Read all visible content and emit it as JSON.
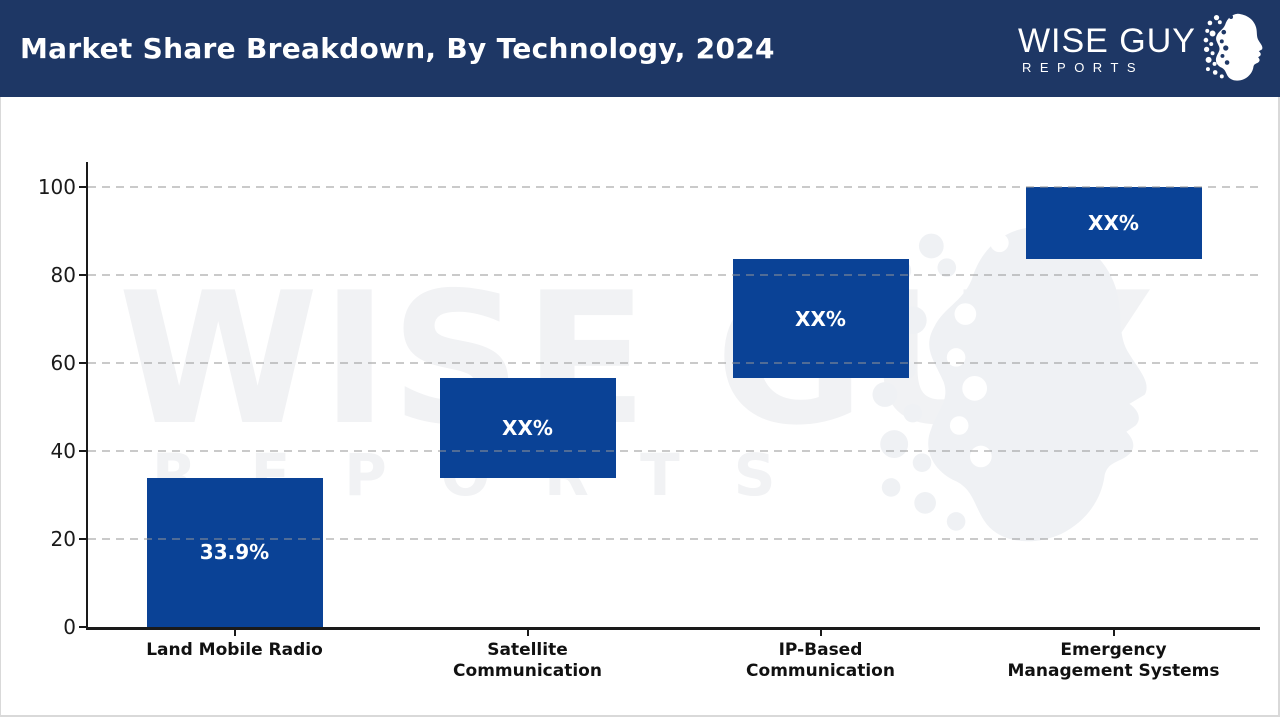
{
  "header": {
    "title": "Market Share Breakdown, By Technology, 2024",
    "brand": {
      "line1": "WISE GUY",
      "line2": "REPORTS"
    }
  },
  "watermark": {
    "line1": "WISE GUY",
    "line2": "REPORTS"
  },
  "colors": {
    "header_bg": "#1e3765",
    "bar": "#0a4296",
    "axis": "#1a1a1a",
    "grid": "rgba(150,150,150,0.5)",
    "watermark": "#f1f2f4",
    "border": "#d9d9d9",
    "label_on_bar": "#ffffff"
  },
  "chart_data": {
    "type": "bar",
    "subtype": "floating-waterfall-segments",
    "title": "Market Share Breakdown, By Technology, 2024",
    "categories": [
      "Land Mobile Radio",
      "Satellite Communication",
      "IP-Based Communication",
      "Emergency Management Systems"
    ],
    "category_lines": [
      [
        "Land Mobile Radio"
      ],
      [
        "Satellite",
        "Communication"
      ],
      [
        "IP-Based",
        "Communication"
      ],
      [
        "Emergency",
        "Management Systems"
      ]
    ],
    "segments": [
      {
        "category": "Land Mobile Radio",
        "start": 0,
        "end": 33.9,
        "label": "33.9%"
      },
      {
        "category": "Satellite Communication",
        "start": 33.9,
        "end": 56.6,
        "label": "XX%"
      },
      {
        "category": "IP-Based Communication",
        "start": 56.6,
        "end": 83.6,
        "label": "XX%"
      },
      {
        "category": "Emergency Management Systems",
        "start": 83.6,
        "end": 100,
        "label": "XX%"
      }
    ],
    "ylim": [
      0,
      100
    ],
    "yticks": [
      0,
      20,
      40,
      60,
      80,
      100
    ],
    "grid": "dashed-horizontal",
    "legend": false
  }
}
